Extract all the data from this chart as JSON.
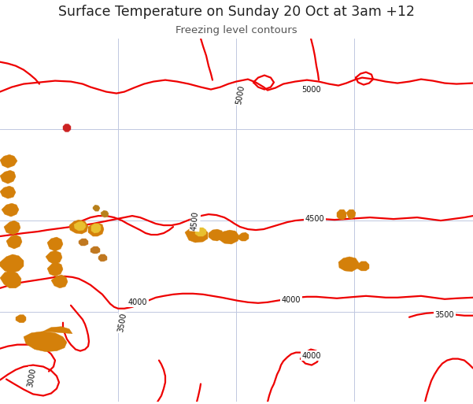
{
  "title": "Surface Temperature on Sunday 20 Oct at 3am +12",
  "subtitle": "Freezing level contours",
  "title_fontsize": 12.5,
  "subtitle_fontsize": 9.5,
  "bg_color": "#dde4f0",
  "land_color_orange": "#d4800a",
  "land_color_yellow": "#e8c030",
  "contour_color": "#ee0000",
  "grid_color": "#c8cfe8",
  "figsize": [
    6.01,
    5.13
  ],
  "dpi": 100,
  "contour_lw": 1.6,
  "label_fontsize": 7,
  "label_bg": "#ffffff"
}
